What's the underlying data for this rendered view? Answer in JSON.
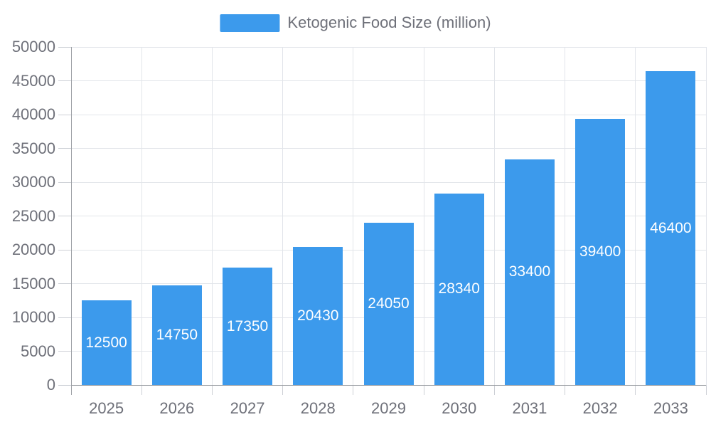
{
  "chart_data": {
    "type": "bar",
    "title": "Ketogenic Food Size (million)",
    "legend": {
      "entries": [
        "Ketogenic Food Size (million)"
      ],
      "position": "top-center"
    },
    "categories": [
      "2025",
      "2026",
      "2027",
      "2028",
      "2029",
      "2030",
      "2031",
      "2032",
      "2033"
    ],
    "series": [
      {
        "name": "Ketogenic Food Size (million)",
        "values": [
          12500,
          14750,
          17350,
          20430,
          24050,
          28340,
          33400,
          39400,
          46400
        ]
      }
    ],
    "data_labels_shown": true,
    "xlabel": "",
    "ylabel": "",
    "ylim": [
      0,
      50000
    ],
    "ytick_step": 5000,
    "ytick_labels": [
      "0",
      "5000",
      "10000",
      "15000",
      "20000",
      "25000",
      "30000",
      "35000",
      "40000",
      "45000",
      "50000"
    ],
    "grid": true,
    "colors": {
      "bar": "#3C9AEC",
      "bar_value_label": "#FFFFFF",
      "axis_text": "#6E7079",
      "gridline": "#E2E5EA",
      "tick": "#CDD0D6",
      "axis_line": "#9DA0A5",
      "background": "#FFFFFF"
    }
  }
}
